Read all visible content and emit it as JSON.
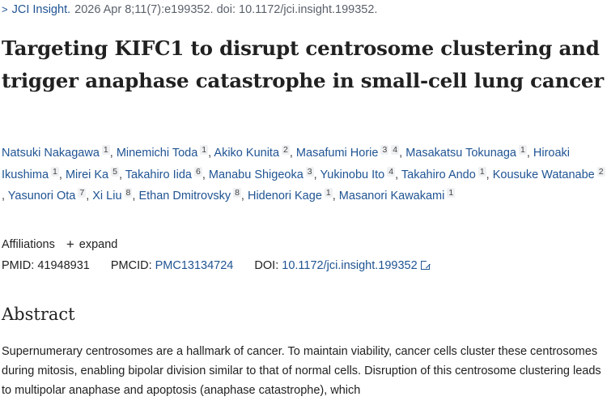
{
  "citation": {
    "chevron": ">",
    "journal": "JCI Insight.",
    "details": "2026 Apr 8;11(7):e199352. doi: 10.1172/jci.insight.199352."
  },
  "title": "Targeting KIFC1 to disrupt centrosome clustering and trigger anaphase catastrophe in small-cell lung cancer",
  "authors": [
    {
      "name": "Natsuki Nakagawa",
      "aff": "1"
    },
    {
      "name": "Minemichi Toda",
      "aff": "1"
    },
    {
      "name": "Akiko Kunita",
      "aff": "2"
    },
    {
      "name": "Masafumi Horie",
      "aff": "3 4"
    },
    {
      "name": "Masakatsu Tokunaga",
      "aff": "1"
    },
    {
      "name": "Hiroaki Ikushima",
      "aff": "1"
    },
    {
      "name": "Mirei Ka",
      "aff": "5"
    },
    {
      "name": "Takahiro Iida",
      "aff": "6"
    },
    {
      "name": "Manabu Shigeoka",
      "aff": "3"
    },
    {
      "name": "Yukinobu Ito",
      "aff": "4"
    },
    {
      "name": "Takahiro Ando",
      "aff": "1"
    },
    {
      "name": "Kousuke Watanabe",
      "aff": "2"
    },
    {
      "name": "Yasunori Ota",
      "aff": "7"
    },
    {
      "name": "Xi Liu",
      "aff": "8"
    },
    {
      "name": "Ethan Dmitrovsky",
      "aff": "8"
    },
    {
      "name": "Hidenori Kage",
      "aff": "1"
    },
    {
      "name": "Masanori Kawakami",
      "aff": "1"
    }
  ],
  "affiliations": {
    "label": "Affiliations",
    "expand_label": "expand",
    "expand_icon": "plus-icon"
  },
  "identifiers": {
    "pmid_label": "PMID:",
    "pmid": "41948931",
    "pmcid_label": "PMCID:",
    "pmcid": "PMC13134724",
    "doi_label": "DOI:",
    "doi": "10.1172/jci.insight.199352",
    "doi_icon": "external-link-icon"
  },
  "abstract": {
    "heading": "Abstract",
    "text": "Supernumerary centrosomes are a hallmark of cancer. To maintain viability, cancer cells cluster these centrosomes during mitosis, enabling bipolar division similar to that of normal cells. Disruption of this centrosome clustering leads to multipolar anaphase and apoptosis (anaphase catastrophe), which"
  },
  "colors": {
    "link": "#205493",
    "text": "#212121",
    "muted": "#5b616b"
  }
}
